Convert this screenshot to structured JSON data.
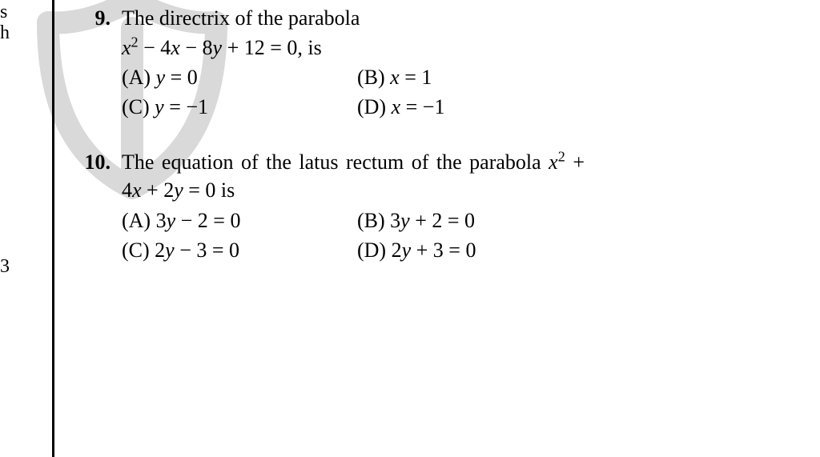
{
  "left_margin": {
    "char1": "s",
    "char2": "h",
    "char3": "3"
  },
  "watermark": {
    "stroke": "#d9d9d9",
    "stroke_width": 28
  },
  "questions": [
    {
      "number": "9.",
      "stem_plain": "The directrix of the parabola",
      "equation_html": "<span class='math-i'>x</span><sup>2</sup> − 4<span class='math-i'>x</span> − 8<span class='math-i'>y</span> + 12 = 0, is",
      "options": [
        {
          "label": "(A)",
          "html": "<span class='math-i'>y</span> = 0"
        },
        {
          "label": "(B)",
          "html": "<span class='math-i'>x</span> = 1"
        },
        {
          "label": "(C)",
          "html": "<span class='math-i'>y</span> = −1"
        },
        {
          "label": "(D)",
          "html": "<span class='math-i'>x</span> = −1"
        }
      ]
    },
    {
      "number": "10.",
      "stem_html": "The equation of the latus rectum of the parabola <span class='math-i'>x</span><sup>2</sup> + 4<span class='math-i'>x</span> + 2<span class='math-i'>y</span> = 0 is",
      "options": [
        {
          "label": "(A)",
          "html": "3<span class='math-i'>y</span> − 2 = 0"
        },
        {
          "label": "(B)",
          "html": "3<span class='math-i'>y</span> + 2 = 0"
        },
        {
          "label": "(C)",
          "html": "2<span class='math-i'>y</span> − 3 = 0"
        },
        {
          "label": "(D)",
          "html": "2<span class='math-i'>y</span> + 3 = 0"
        }
      ]
    }
  ]
}
